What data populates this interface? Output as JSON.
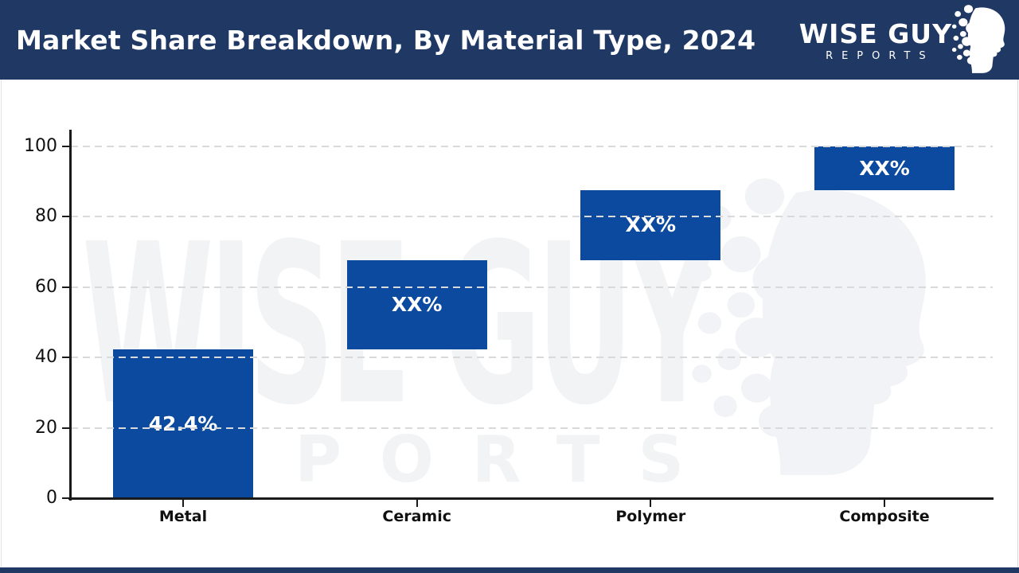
{
  "header": {
    "title": "Market Share Breakdown, By Material Type, 2024",
    "logo": {
      "line1": "WISE GUY",
      "line2": "REPORTS"
    }
  },
  "watermark": {
    "line1": "WISE GUY",
    "line2": "REPORTS"
  },
  "chart_data": {
    "type": "bar",
    "subtype": "waterfall",
    "title": "Market Share Breakdown, By Material Type, 2024",
    "categories": [
      "Metal",
      "Ceramic",
      "Polymer",
      "Composite"
    ],
    "bars": [
      {
        "category": "Metal",
        "start": 0,
        "end": 42.4,
        "label": "42.4%"
      },
      {
        "category": "Ceramic",
        "start": 42.4,
        "end": 67.6,
        "label": "XX%"
      },
      {
        "category": "Polymer",
        "start": 67.6,
        "end": 87.6,
        "label": "XX%"
      },
      {
        "category": "Composite",
        "start": 87.6,
        "end": 100,
        "label": "XX%"
      }
    ],
    "yticks": [
      0,
      20,
      40,
      60,
      80,
      100
    ],
    "ylim": [
      0,
      105
    ],
    "xlabel": "",
    "ylabel": "",
    "grid": true,
    "legend": false,
    "bar_color": "#0b4a9e",
    "value_label_color": "#ffffff"
  },
  "colors": {
    "header_bg": "#1f3864",
    "footer_bg": "#1f3864",
    "bar": "#0b4a9e",
    "axis": "#1a1a1a",
    "grid": "#d9d9d9",
    "watermark": "#f2f3f5",
    "title_text": "#ffffff"
  }
}
